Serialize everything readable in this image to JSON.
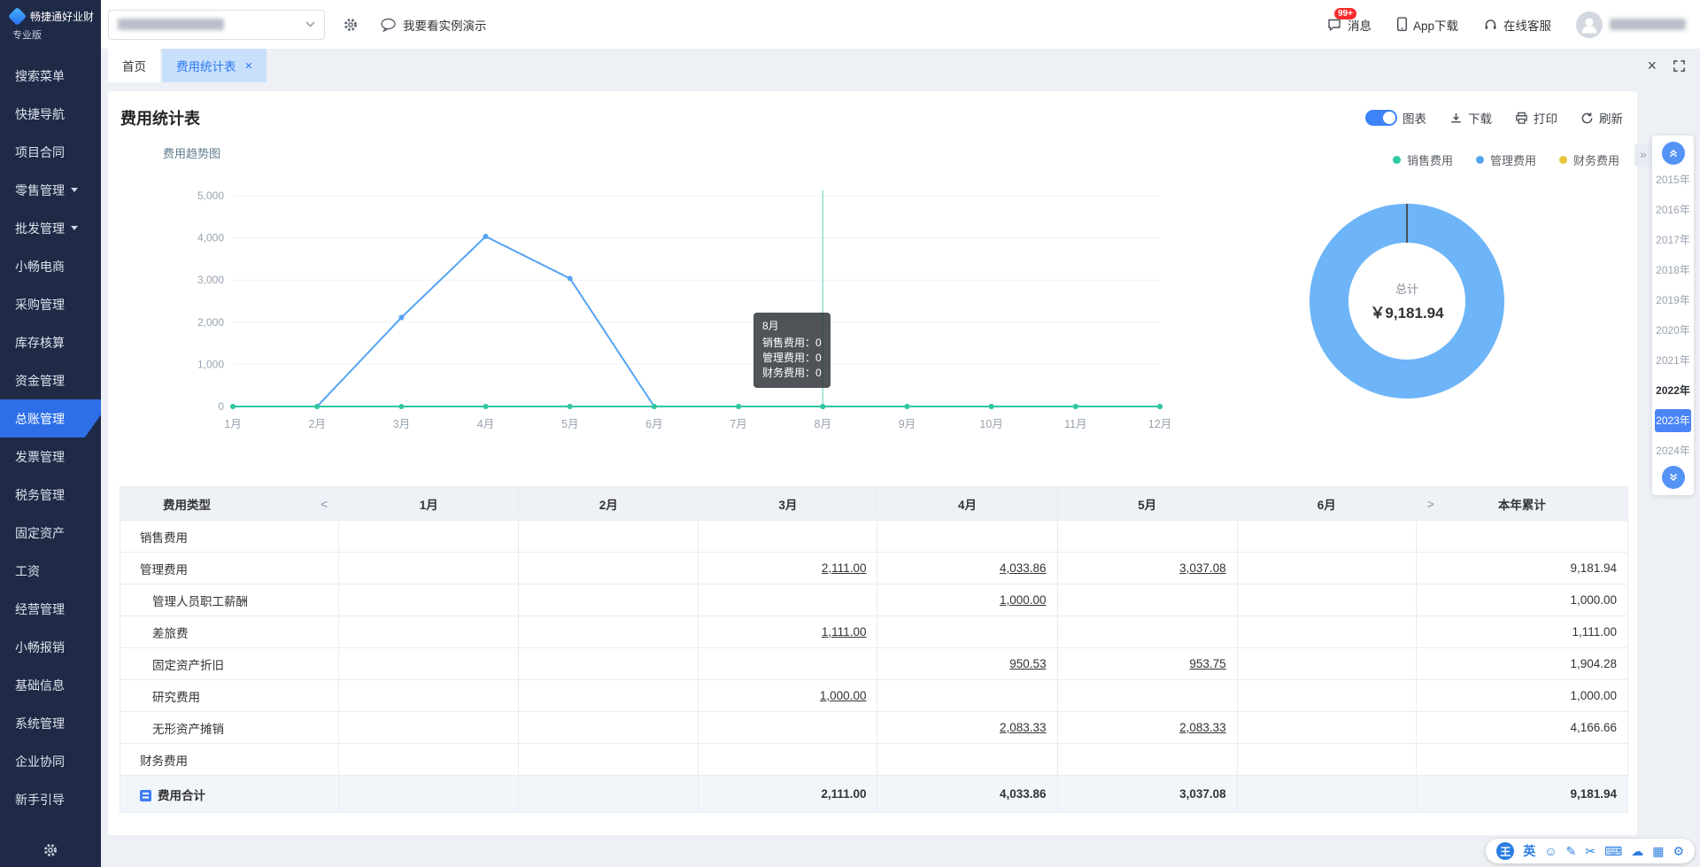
{
  "colors": {
    "accent": "#3e83f8",
    "sidebar_bg": "#1f2a47",
    "sidebar_active": "#2e6fe8",
    "tab_active_bg": "#c9e0fb",
    "tab_active_text": "#2a7af0",
    "series_green": "#2fc7a3",
    "series_blue": "#55a4f3",
    "series_yellow": "#e8c33d",
    "donut_blue": "#6db5f8",
    "badge_red": "#fa2c2c"
  },
  "sidebar": {
    "logo_title": "畅捷通好业财",
    "logo_subtitle": "专业版",
    "items": [
      {
        "label": "搜索菜单"
      },
      {
        "label": "快捷导航"
      },
      {
        "label": "项目合同"
      },
      {
        "label": "零售管理",
        "arrow": true
      },
      {
        "label": "批发管理",
        "arrow": true
      },
      {
        "label": "小畅电商"
      },
      {
        "label": "采购管理"
      },
      {
        "label": "库存核算"
      },
      {
        "label": "资金管理"
      },
      {
        "label": "总账管理",
        "active": true
      },
      {
        "label": "发票管理"
      },
      {
        "label": "税务管理"
      },
      {
        "label": "固定资产"
      },
      {
        "label": "工资"
      },
      {
        "label": "经营管理"
      },
      {
        "label": "小畅报销"
      },
      {
        "label": "基础信息"
      },
      {
        "label": "系统管理"
      },
      {
        "label": "企业协同"
      },
      {
        "label": "新手引导"
      }
    ]
  },
  "topbar": {
    "demo_text": "我要看实例演示",
    "message_label": "消息",
    "message_badge": "99+",
    "app_download": "App下载",
    "online_service": "在线客服"
  },
  "tabs": [
    {
      "label": "首页"
    },
    {
      "label": "费用统计表",
      "active": true
    }
  ],
  "icons": {
    "close": "×",
    "collapse": "»"
  },
  "page": {
    "title": "费用统计表",
    "toolbar": {
      "chart_label": "图表",
      "download": "下载",
      "print": "打印",
      "refresh": "刷新"
    }
  },
  "chart_data": [
    {
      "type": "line",
      "title": "费用趋势图",
      "categories": [
        "1月",
        "2月",
        "3月",
        "4月",
        "5月",
        "6月",
        "7月",
        "8月",
        "9月",
        "10月",
        "11月",
        "12月"
      ],
      "series": [
        {
          "name": "销售费用",
          "color": "#2fc7a3",
          "values": [
            0,
            0,
            0,
            0,
            0,
            0,
            0,
            0,
            0,
            0,
            0,
            0
          ]
        },
        {
          "name": "管理费用",
          "color": "#55a4f3",
          "values": [
            null,
            0,
            2111,
            4033.86,
            3037.08,
            0,
            0,
            0,
            0,
            0,
            0,
            0
          ]
        },
        {
          "name": "财务费用",
          "color": "#e8c33d",
          "values": [
            0,
            0,
            0,
            0,
            0,
            0,
            0,
            0,
            0,
            0,
            0,
            0
          ]
        }
      ],
      "ylim": [
        0,
        5000
      ],
      "yticks": [
        {
          "v": 0,
          "label": "0"
        },
        {
          "v": 1000,
          "label": "1,000"
        },
        {
          "v": 2000,
          "label": "2,000"
        },
        {
          "v": 3000,
          "label": "3,000"
        },
        {
          "v": 4000,
          "label": "4,000"
        },
        {
          "v": 5000,
          "label": "5,000"
        }
      ],
      "grid": true,
      "legend_position": "top-right",
      "tooltip": {
        "index": 7,
        "title": "8月",
        "guide_color": "#7bd8c6",
        "items": [
          {
            "label": "销售费用",
            "value": "0"
          },
          {
            "label": "管理费用",
            "value": "0"
          },
          {
            "label": "财务费用",
            "value": "0"
          }
        ]
      }
    },
    {
      "type": "pie",
      "donut": true,
      "center_label": "总计",
      "center_value": "￥9,181.94",
      "series": [
        {
          "name": "销售费用",
          "value": 0,
          "color": "#2fc7a3"
        },
        {
          "name": "管理费用",
          "value": 9181.94,
          "color": "#6db5f8"
        },
        {
          "name": "财务费用",
          "value": 0,
          "color": "#e8c33d"
        }
      ]
    }
  ],
  "year_panel": {
    "list": [
      "2015年",
      "2016年",
      "2017年",
      "2018年",
      "2019年",
      "2020年",
      "2021年",
      "2022年",
      "2023年",
      "2024年"
    ],
    "active": "2023年",
    "emphasized": "2022年"
  },
  "table": {
    "headers": {
      "type": "费用类型",
      "months": [
        "1月",
        "2月",
        "3月",
        "4月",
        "5月",
        "6月"
      ],
      "total": "本年累计",
      "scroll_left": "<",
      "scroll_right": ">"
    },
    "rows": [
      {
        "label": "销售费用",
        "indent": 0,
        "values": [
          "",
          "",
          "",
          "",
          "",
          ""
        ],
        "total": ""
      },
      {
        "label": "管理费用",
        "indent": 0,
        "values": [
          "",
          "",
          "2,111.00",
          "4,033.86",
          "3,037.08",
          ""
        ],
        "links": [
          2,
          3,
          4
        ],
        "total": "9,181.94"
      },
      {
        "label": "管理人员职工薪酬",
        "indent": 1,
        "values": [
          "",
          "",
          "",
          "1,000.00",
          "",
          ""
        ],
        "links": [
          3
        ],
        "total": "1,000.00"
      },
      {
        "label": "差旅费",
        "indent": 1,
        "values": [
          "",
          "",
          "1,111.00",
          "",
          "",
          ""
        ],
        "links": [
          2
        ],
        "total": "1,111.00"
      },
      {
        "label": "固定资产折旧",
        "indent": 1,
        "values": [
          "",
          "",
          "",
          "950.53",
          "953.75",
          ""
        ],
        "links": [
          3,
          4
        ],
        "total": "1,904.28"
      },
      {
        "label": "研究费用",
        "indent": 1,
        "values": [
          "",
          "",
          "1,000.00",
          "",
          "",
          ""
        ],
        "links": [
          2
        ],
        "total": "1,000.00"
      },
      {
        "label": "无形资产摊销",
        "indent": 1,
        "values": [
          "",
          "",
          "",
          "2,083.33",
          "2,083.33",
          ""
        ],
        "links": [
          3,
          4
        ],
        "total": "4,166.66"
      },
      {
        "label": "财务费用",
        "indent": 0,
        "values": [
          "",
          "",
          "",
          "",
          "",
          ""
        ],
        "total": ""
      }
    ],
    "footer": {
      "label": "费用合计",
      "values": [
        "",
        "",
        "2,111.00",
        "4,033.86",
        "3,037.08",
        ""
      ],
      "total": "9,181.94"
    }
  },
  "ime": {
    "lang_badge": "王",
    "mode": "英",
    "tools": [
      {
        "name": "emoji-icon",
        "glyph": "☺"
      },
      {
        "name": "pen-icon",
        "glyph": "✎"
      },
      {
        "name": "scissors-icon",
        "glyph": "✂"
      },
      {
        "name": "keyboard-icon",
        "glyph": "⌨"
      },
      {
        "name": "cloud-icon",
        "glyph": "☁"
      },
      {
        "name": "apps-icon",
        "glyph": "▦"
      },
      {
        "name": "settings-icon",
        "glyph": "⚙"
      }
    ]
  }
}
